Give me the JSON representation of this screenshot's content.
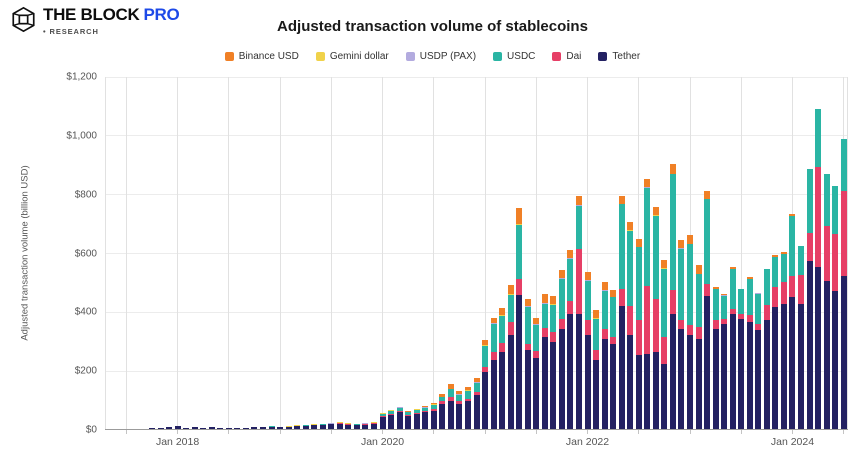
{
  "header": {
    "logo": {
      "brand": "THE BLOCK",
      "brand_suffix": "PRO",
      "subtitle": "• RESEARCH",
      "pro_color": "#1d49e8"
    },
    "title": "Adjusted transaction volume of stablecoins"
  },
  "chart_data": {
    "type": "bar",
    "stacked": true,
    "stack_order": "bottom-to-top",
    "title": "Adjusted transaction volume of stablecoins",
    "xlabel": "",
    "ylabel": "Adjusted transaction volume (billion USD)",
    "ylim": [
      0,
      1200
    ],
    "grid": "horizontal every $200, vertical every Jan and Jul",
    "legend_position": "top-center",
    "yticks": [
      0,
      200,
      400,
      600,
      800,
      1000,
      1200
    ],
    "ytick_labels": [
      "$0",
      "$200",
      "$400",
      "$600",
      "$800",
      "$1,000",
      "$1,200"
    ],
    "xticks": [
      {
        "label": "Jan 2018",
        "month": "2018-01"
      },
      {
        "label": "Jan 2020",
        "month": "2020-01"
      },
      {
        "label": "Jan 2022",
        "month": "2022-01"
      },
      {
        "label": "Jan 2024",
        "month": "2024-01"
      }
    ],
    "legend": [
      {
        "key": "binance_usd",
        "label": "Binance USD",
        "color": "#f08026"
      },
      {
        "key": "gemini_dollar",
        "label": "Gemini dollar",
        "color": "#f0d24a"
      },
      {
        "key": "usdp_pax",
        "label": "USDP (PAX)",
        "color": "#b3abdf"
      },
      {
        "key": "usdc",
        "label": "USDC",
        "color": "#2ab5a4"
      },
      {
        "key": "dai",
        "label": "Dai",
        "color": "#e63f66"
      },
      {
        "key": "tether",
        "label": "Tether",
        "color": "#232162"
      }
    ],
    "months": [
      "2017-05",
      "2017-06",
      "2017-07",
      "2017-08",
      "2017-09",
      "2017-10",
      "2017-11",
      "2017-12",
      "2018-01",
      "2018-02",
      "2018-03",
      "2018-04",
      "2018-05",
      "2018-06",
      "2018-07",
      "2018-08",
      "2018-09",
      "2018-10",
      "2018-11",
      "2018-12",
      "2019-01",
      "2019-02",
      "2019-03",
      "2019-04",
      "2019-05",
      "2019-06",
      "2019-07",
      "2019-08",
      "2019-09",
      "2019-10",
      "2019-11",
      "2019-12",
      "2020-01",
      "2020-02",
      "2020-03",
      "2020-04",
      "2020-05",
      "2020-06",
      "2020-07",
      "2020-08",
      "2020-09",
      "2020-10",
      "2020-11",
      "2020-12",
      "2021-01",
      "2021-02",
      "2021-03",
      "2021-04",
      "2021-05",
      "2021-06",
      "2021-07",
      "2021-08",
      "2021-09",
      "2021-10",
      "2021-11",
      "2021-12",
      "2022-01",
      "2022-02",
      "2022-03",
      "2022-04",
      "2022-05",
      "2022-06",
      "2022-07",
      "2022-08",
      "2022-09",
      "2022-10",
      "2022-11",
      "2022-12",
      "2023-01",
      "2023-02",
      "2023-03",
      "2023-04",
      "2023-05",
      "2023-06",
      "2023-07",
      "2023-08",
      "2023-09",
      "2023-10",
      "2023-11",
      "2023-12",
      "2024-01",
      "2024-02",
      "2024-03",
      "2024-04",
      "2024-05",
      "2024-06",
      "2024-07"
    ],
    "series": [
      {
        "key": "tether",
        "name": "Tether",
        "color": "#232162",
        "values": [
          2,
          3,
          3,
          4,
          5,
          6,
          8,
          10,
          12,
          8,
          9,
          8,
          9,
          8,
          8,
          8,
          8,
          9,
          10,
          11,
          9,
          10,
          12.5,
          14,
          16,
          17.5,
          19,
          21.5,
          18,
          16,
          18.5,
          21,
          44,
          52,
          60,
          48,
          54,
          60,
          66,
          90,
          100,
          90,
          98,
          118,
          198,
          237,
          265,
          322,
          458,
          271,
          245,
          316,
          299,
          345,
          395,
          395,
          322,
          237,
          310,
          293,
          423,
          322,
          254,
          260,
          265,
          226,
          395,
          345,
          322,
          310,
          455,
          345,
          361,
          395,
          378,
          367,
          339,
          373,
          418,
          429,
          452,
          430,
          575,
          554,
          508,
          474,
          525
        ]
      },
      {
        "key": "dai",
        "name": "Dai",
        "color": "#e63f66",
        "values": [
          0,
          0,
          0,
          0,
          0,
          0,
          0,
          0,
          0,
          0,
          0,
          0,
          0,
          0,
          0,
          0,
          0,
          0,
          0,
          0,
          0.5,
          0.5,
          0.5,
          1,
          1,
          1,
          1.5,
          1.5,
          1.5,
          1.5,
          1.5,
          2,
          3,
          4,
          5,
          4,
          4,
          5,
          6,
          7,
          11,
          8,
          9,
          11,
          17,
          28,
          30,
          45,
          55,
          23,
          22,
          32,
          34,
          34,
          45,
          220,
          51,
          34,
          34,
          23,
          56,
          100,
          119,
          231,
          181,
          90,
          80,
          30,
          36,
          40,
          40,
          28,
          17,
          17,
          17,
          23,
          23,
          51,
          68,
          73,
          70,
          96,
          96,
          339,
          187,
          193,
          288
        ]
      },
      {
        "key": "usdc",
        "name": "USDC",
        "color": "#2ab5a4",
        "values": [
          0,
          0,
          0,
          0,
          0,
          0,
          0,
          0,
          0,
          0,
          0,
          0,
          0,
          0,
          0,
          0,
          0,
          0.5,
          0.5,
          1,
          0.5,
          0.5,
          1,
          1,
          1,
          1.5,
          1.5,
          2,
          1.5,
          1.5,
          2,
          2,
          8,
          9,
          11,
          9,
          10,
          11,
          13,
          15,
          28,
          22,
          26,
          32,
          70,
          96,
          92,
          91,
          183,
          124,
          91,
          82,
          91,
          135,
          142,
          147,
          135,
          107,
          130,
          135,
          288,
          255,
          248,
          333,
          282,
          232,
          394,
          242,
          275,
          181,
          290,
          107,
          79,
          135,
          85,
          124,
          102,
          124,
          102,
          96,
          206,
          101,
          216,
          199,
          175,
          163,
          177
        ]
      },
      {
        "key": "usdp_pax",
        "name": "USDP (PAX)",
        "color": "#b3abdf",
        "values": [
          0,
          0,
          0,
          0,
          0,
          0,
          0,
          0,
          0,
          0,
          0,
          0,
          0,
          0,
          0,
          0,
          0,
          0,
          0,
          0,
          0.5,
          0.5,
          0.5,
          0.5,
          0.5,
          0.5,
          0.5,
          0.5,
          0.5,
          0.5,
          0.5,
          0.5,
          1,
          1,
          1,
          1,
          1,
          1,
          1,
          1,
          1,
          1,
          1,
          1,
          2,
          2,
          2,
          2,
          2,
          2,
          2,
          2,
          2,
          2,
          2,
          2,
          1,
          1,
          1,
          1,
          1,
          1,
          1,
          1,
          1,
          1,
          1,
          1,
          0.5,
          0.5,
          0.5,
          0.5,
          0.5,
          0.5,
          0.5,
          0.5,
          0.5,
          0.5,
          0.5,
          0.5,
          0,
          0,
          0,
          0,
          0,
          0,
          0
        ]
      },
      {
        "key": "gemini_dollar",
        "name": "Gemini dollar",
        "color": "#f0d24a",
        "values": [
          0,
          0,
          0,
          0,
          0,
          0,
          0,
          0,
          0,
          0,
          0,
          0,
          0,
          0,
          0,
          0,
          0,
          0.5,
          0.5,
          0.5,
          1,
          1,
          1,
          1,
          1,
          1,
          1,
          1,
          1,
          1,
          1,
          1,
          1,
          1,
          1,
          1,
          1,
          1,
          1,
          1,
          1,
          1,
          1,
          1,
          1,
          1,
          1,
          1,
          1,
          1,
          1,
          1,
          1,
          1,
          1,
          1,
          0.5,
          0.5,
          0.5,
          0.5,
          0.5,
          0.5,
          0.5,
          0.5,
          0.5,
          0.5,
          0.5,
          0.5,
          0,
          0,
          0,
          0,
          0,
          0,
          0,
          0,
          0,
          0,
          0,
          0,
          0,
          0,
          0,
          0,
          0,
          0,
          0
        ]
      },
      {
        "key": "binance_usd",
        "name": "Binance USD",
        "color": "#f08026",
        "values": [
          0,
          0,
          0,
          0,
          0,
          0,
          0,
          0,
          0,
          0,
          0,
          0,
          0,
          0,
          0,
          0,
          0,
          0,
          0,
          0,
          0,
          0,
          0,
          0,
          0,
          0,
          0,
          0,
          0.5,
          0.5,
          1,
          1,
          1,
          1,
          1,
          1,
          2,
          3,
          5,
          7,
          14,
          10,
          12,
          14,
          18,
          18,
          25,
          33,
          56,
          23,
          20,
          28,
          28,
          28,
          28,
          31,
          28,
          28,
          28,
          23,
          28,
          28,
          28,
          28,
          28,
          28,
          34,
          28,
          28,
          28,
          28,
          6,
          6,
          6,
          0,
          6,
          0,
          0,
          5,
          6,
          6,
          0,
          0,
          0,
          0,
          0,
          0
        ]
      }
    ]
  }
}
